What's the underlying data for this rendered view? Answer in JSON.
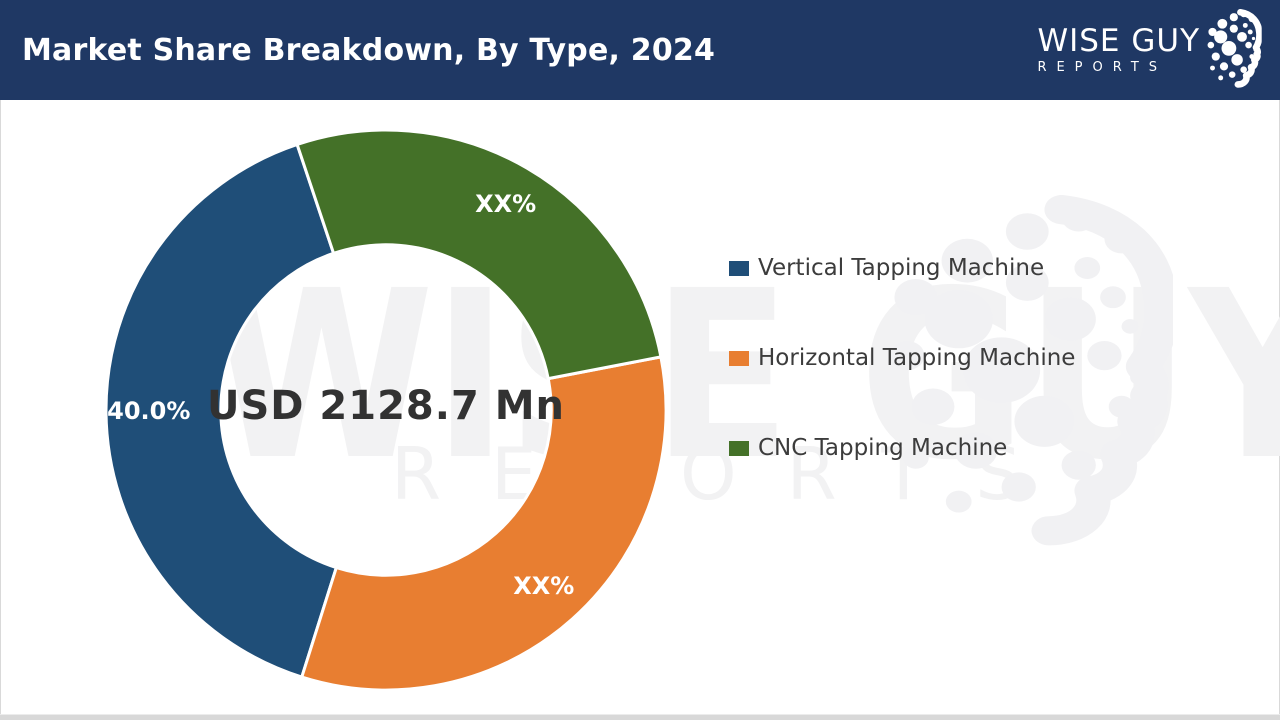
{
  "header": {
    "title": "Market Share Breakdown, By Type, 2024",
    "logo": {
      "line1": "WISE GUY",
      "line2": "REPORTS"
    }
  },
  "watermark": {
    "line1": "WISE GUY",
    "line2": "REPORTS"
  },
  "chart_data": {
    "type": "pie",
    "subtype": "donut",
    "title": "Market Share Breakdown, By Type, 2024",
    "center_label": "USD 2128.7 Mn",
    "categories": [
      "Vertical Tapping Machine",
      "Horizontal Tapping Machine",
      "CNC Tapping Machine"
    ],
    "values": [
      40.0,
      32.9,
      27.1
    ],
    "value_labels": [
      "40.0%",
      "XX%",
      "XX%"
    ],
    "colors": [
      "#1F4E78",
      "#E87E31",
      "#447128"
    ],
    "start_angle_deg": 108.5,
    "direction": "counterclockwise",
    "inner_radius_ratio": 0.59,
    "label_radius_ratio": 0.847,
    "legend_position": "right",
    "note": "Horizontal and CNC slice values are shown only as XX% placeholders; 32.9 / 27.1 are estimates of the drawn arc sizes"
  },
  "legend": {
    "items": [
      {
        "label": "Vertical Tapping Machine",
        "color": "#1F4E78"
      },
      {
        "label": "Horizontal Tapping Machine",
        "color": "#E87E31"
      },
      {
        "label": "CNC Tapping Machine",
        "color": "#447128"
      }
    ]
  },
  "colors": {
    "header_bg": "#1F3864",
    "background": "#FFFFFF",
    "watermark": "#F2F2F3",
    "legend_text": "#3C3C3C",
    "center_text": "#323232",
    "bottom_strip": "#D8D8D8"
  }
}
